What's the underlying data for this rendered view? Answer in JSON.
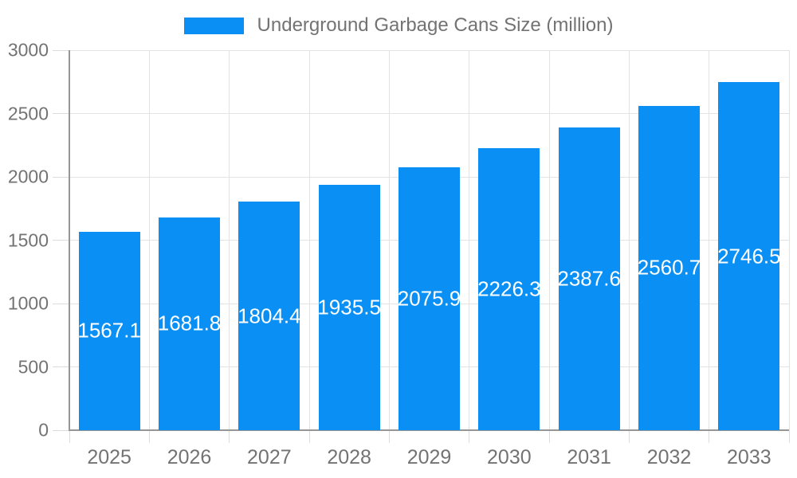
{
  "chart_data": {
    "type": "bar",
    "title": "Underground Garbage Cans Size (million)",
    "series": [
      {
        "name": "Underground Garbage Cans Size (million)",
        "values": [
          1567.1,
          1681.8,
          1804.4,
          1935.5,
          2075.9,
          2226.3,
          2387.6,
          2560.7,
          2746.5
        ]
      }
    ],
    "categories": [
      "2025",
      "2026",
      "2027",
      "2028",
      "2029",
      "2030",
      "2031",
      "2032",
      "2033"
    ],
    "data_labels": [
      "1567.1",
      "1681.8",
      "1804.4",
      "1935.5",
      "2075.9",
      "2226.3",
      "2387.6",
      "2560.7",
      "2746.5"
    ],
    "xlabel": "",
    "ylabel": "",
    "ylim": [
      0,
      3000
    ],
    "yticks": [
      0,
      500,
      1000,
      1500,
      2000,
      2500,
      3000
    ],
    "ytick_labels": [
      "0",
      "500",
      "1000",
      "1500",
      "2000",
      "2500",
      "3000"
    ],
    "grid": true,
    "legend_position": "top-center",
    "colors": {
      "bar": "#0a90f5",
      "grid": "#e3e3e3",
      "tick": "#dcdcdc",
      "axis": "#969696",
      "text": "#737373",
      "bar_label": "#ffffff",
      "background": "#ffffff"
    }
  }
}
